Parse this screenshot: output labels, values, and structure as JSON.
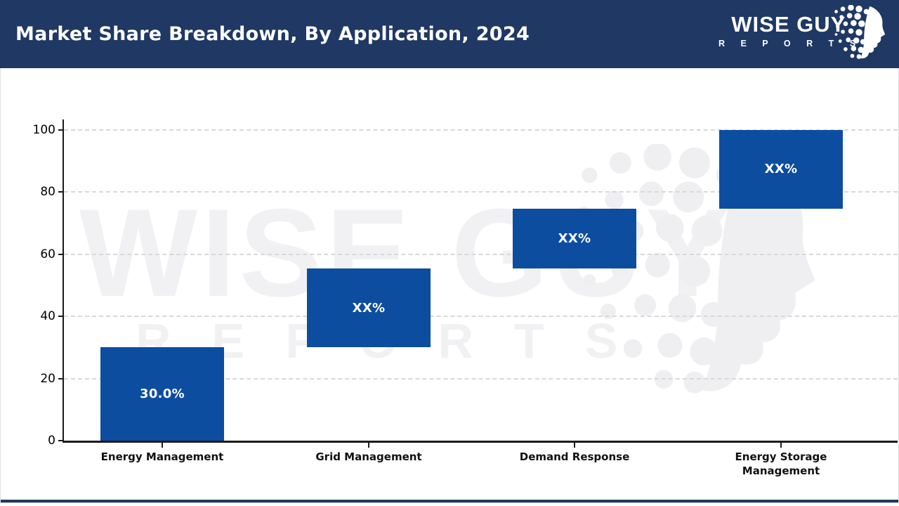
{
  "header": {
    "title": "Market Share Breakdown, By Application, 2024",
    "logo": {
      "line1": "WISE GUY",
      "line2": "R E P O R T S"
    }
  },
  "watermark": {
    "line1": "WISE GUY",
    "line2": "REPORTS"
  },
  "colors": {
    "header_bg": "#1f3864",
    "footer_bg": "#1f3864",
    "bar": "#0d4da0",
    "gridline": "#d8d8d8",
    "axis": "#1a1a1a",
    "watermark": "#f1f1f3"
  },
  "chart_data": {
    "type": "bar",
    "subtype": "waterfall",
    "title": "Market Share Breakdown, By Application, 2024",
    "xlabel": "",
    "ylabel": "",
    "ylim": [
      0,
      100
    ],
    "y_ticks": [
      0,
      20,
      40,
      60,
      80,
      100
    ],
    "grid": "horizontal-dashed",
    "legend": "none",
    "bar_color": "#0d4da0",
    "value_label_color": "#ffffff",
    "categories": [
      "Energy Management",
      "Grid Management",
      "Demand Response",
      "Energy Storage Management"
    ],
    "segments": [
      {
        "category": "Energy Management",
        "start": 0,
        "end": 30,
        "label": "30.0%",
        "lines": [
          "Energy Management"
        ]
      },
      {
        "category": "Grid Management",
        "start": 30,
        "end": 55.4,
        "label": "XX%",
        "lines": [
          "Grid Management"
        ]
      },
      {
        "category": "Demand Response",
        "start": 55.4,
        "end": 74.7,
        "label": "XX%",
        "lines": [
          "Demand Response"
        ]
      },
      {
        "category": "Energy Storage Management",
        "start": 74.7,
        "end": 100,
        "label": "XX%",
        "lines": [
          "Energy Storage",
          "Management"
        ]
      }
    ],
    "value_note": "Only the first segment shows a numeric value (30.0%); remaining segment values are masked as XX% in the image. Start/end estimated from axis."
  }
}
